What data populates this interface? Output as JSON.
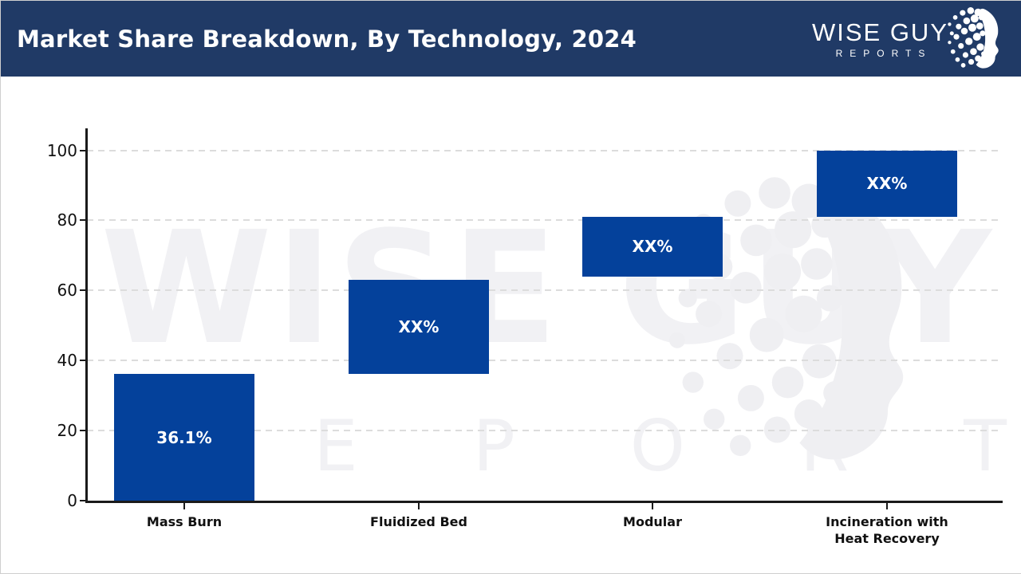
{
  "header": {
    "title": "Market Share Breakdown, By Technology, 2024",
    "logo": {
      "line1": "WISE GUY",
      "line2": "REPORTS"
    }
  },
  "watermark": {
    "line1": "WISE GUY",
    "line2": "REPORTS"
  },
  "chart_data": {
    "type": "bar",
    "subtype": "waterfall",
    "title": "Market Share Breakdown, By Technology, 2024",
    "xlabel": "",
    "ylabel": "",
    "categories": [
      "Mass Burn",
      "Fluidized Bed",
      "Modular",
      "Incineration with Heat Recovery"
    ],
    "segments": [
      {
        "label": "Mass Burn",
        "start": 0,
        "end": 36.1,
        "value_label": "36.1%"
      },
      {
        "label": "Fluidized Bed",
        "start": 36.1,
        "end": 63,
        "value_label": "XX%"
      },
      {
        "label": "Modular",
        "start": 64,
        "end": 81,
        "value_label": "XX%"
      },
      {
        "label": "Incineration with Heat Recovery",
        "start": 81,
        "end": 100,
        "value_label": "XX%"
      }
    ],
    "y_ticks": [
      0,
      20,
      40,
      60,
      80,
      100
    ],
    "ylim": [
      0,
      106
    ],
    "grid": "horizontal-dashed",
    "legend": "none",
    "bar_color": "#04419b",
    "bar_label_color": "#ffffff"
  },
  "colors": {
    "header_bg": "#203a66",
    "bar": "#04419b",
    "grid": "#dcdcdc",
    "axis": "#1a1a1a",
    "watermark": "#f1f1f4",
    "title_text": "#ffffff"
  }
}
